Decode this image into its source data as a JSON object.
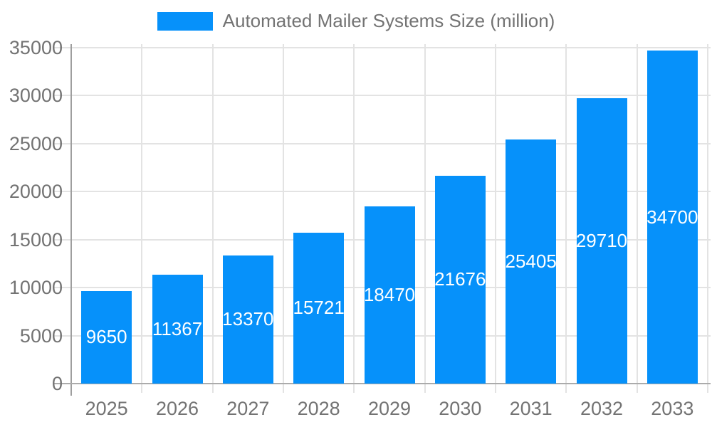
{
  "legend": {
    "label": "Automated Mailer Systems Size (million)"
  },
  "chart_data": {
    "type": "bar",
    "title": "Automated Mailer Systems Size (million)",
    "categories": [
      "2025",
      "2026",
      "2027",
      "2028",
      "2029",
      "2030",
      "2031",
      "2032",
      "2033"
    ],
    "values": [
      9650,
      11367,
      13370,
      15721,
      18470,
      21676,
      25405,
      29710,
      34700
    ],
    "xlabel": "",
    "ylabel": "",
    "ylim": [
      0,
      35000
    ],
    "yticks": [
      0,
      5000,
      10000,
      15000,
      20000,
      25000,
      30000,
      35000
    ],
    "grid": true,
    "legend_position": "top-center",
    "bar_color": "#0691fa",
    "bar_value_label_color": "#ffffff",
    "axis_text_color": "#737373"
  }
}
